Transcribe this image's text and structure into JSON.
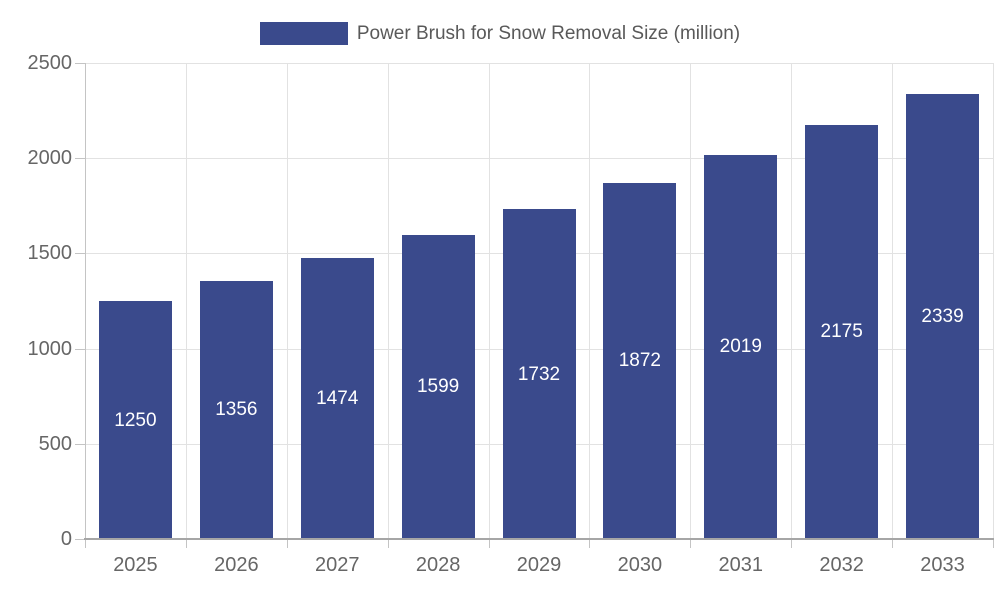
{
  "chart_data": {
    "type": "bar",
    "title": "",
    "categories": [
      "2025",
      "2026",
      "2027",
      "2028",
      "2029",
      "2030",
      "2031",
      "2032",
      "2033"
    ],
    "series": [
      {
        "name": "Power Brush for Snow Removal Size (million)",
        "values": [
          1250,
          1356,
          1474,
          1599,
          1732,
          1872,
          2019,
          2175,
          2339
        ]
      }
    ],
    "value_labels": [
      "1250",
      "1356",
      "1474",
      "1599",
      "1732",
      "1872",
      "2019",
      "2175",
      "2339"
    ],
    "xlabel": "",
    "ylabel": "",
    "ylim": [
      0,
      2500
    ],
    "yticks": [
      0,
      500,
      1000,
      1500,
      2000,
      2500
    ],
    "grid": true,
    "legend_position": "top",
    "colors": {
      "bar": "#3A4A8C",
      "value_label": "#FFFFFF",
      "tick_text": "#666666",
      "legend_text": "#595959",
      "gridline": "#E2E2E2",
      "axis_line": "#A6A6A6"
    }
  }
}
